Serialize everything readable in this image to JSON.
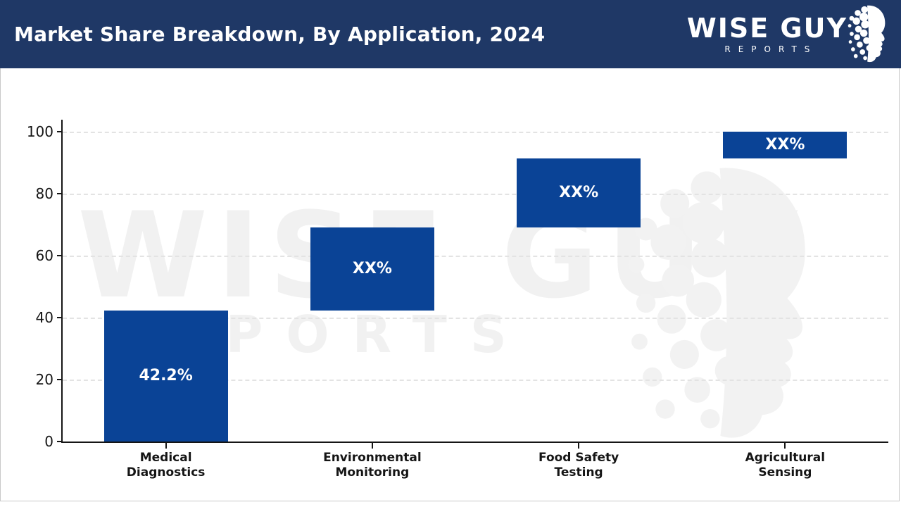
{
  "header": {
    "title": "Market Share Breakdown, By Application, 2024",
    "background_color": "#1f3866",
    "logo": {
      "line1": "WISE GUY",
      "line2": "REPORTS"
    }
  },
  "watermark": {
    "line1": "WISE GUY",
    "line2": "REPORTS"
  },
  "chart_data": {
    "type": "bar",
    "subtype": "waterfall",
    "title": "Market Share Breakdown, By Application, 2024",
    "categories": [
      "Medical Diagnostics",
      "Environmental Monitoring",
      "Food Safety Testing",
      "Agricultural Sensing"
    ],
    "category_lines": [
      [
        "Medical",
        "Diagnostics"
      ],
      [
        "Environmental",
        "Monitoring"
      ],
      [
        "Food Safety",
        "Testing"
      ],
      [
        "Agricultural",
        "Sensing"
      ]
    ],
    "values": [
      42.2,
      26.8,
      22.3,
      8.7
    ],
    "segment_start": [
      0,
      42.2,
      69.0,
      91.3
    ],
    "segment_end": [
      42.2,
      69.0,
      91.3,
      100.0
    ],
    "bar_labels": [
      "42.2%",
      "XX%",
      "XX%",
      "XX%"
    ],
    "bar_color": "#0a4396",
    "bar_label_color": "#ffffff",
    "axis_color": "#151515",
    "ylim": [
      0,
      100
    ],
    "yticks": [
      0,
      20,
      40,
      60,
      80,
      100
    ],
    "grid": "horizontal-dashed",
    "legend": "none",
    "xlabel": "",
    "ylabel": ""
  }
}
